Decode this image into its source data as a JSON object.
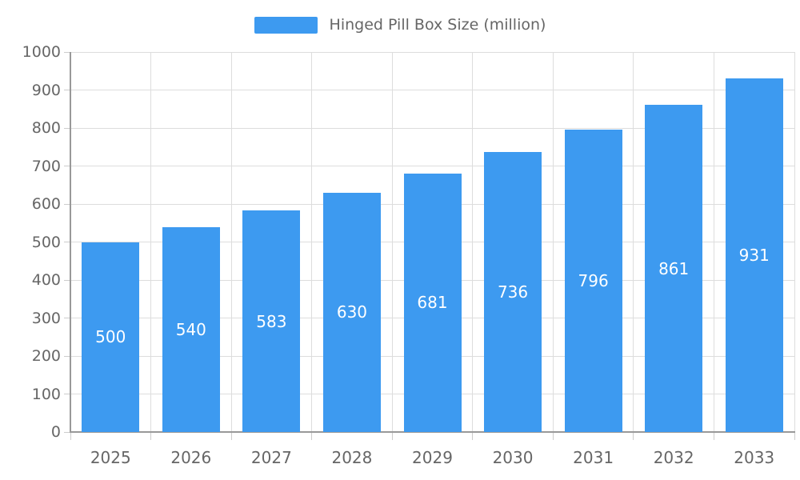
{
  "legend": {
    "label": "Hinged Pill Box Size (million)"
  },
  "chart_data": {
    "type": "bar",
    "title": "",
    "categories": [
      "2025",
      "2026",
      "2027",
      "2028",
      "2029",
      "2030",
      "2031",
      "2032",
      "2033"
    ],
    "series": [
      {
        "name": "Hinged Pill Box Size (million)",
        "values": [
          500,
          540,
          583,
          630,
          681,
          736,
          796,
          861,
          931
        ]
      }
    ],
    "bar_value_labels": [
      "500",
      "540",
      "583",
      "630",
      "681",
      "736",
      "796",
      "861",
      "931"
    ],
    "ylim": [
      0,
      1000
    ],
    "yticks": [
      0,
      100,
      200,
      300,
      400,
      500,
      600,
      700,
      800,
      900,
      1000
    ],
    "grid": true,
    "legend_position": "top",
    "colors": {
      "bar": "#3d9af0",
      "bar_value_text": "#ffffff",
      "axis_line": "#999999",
      "grid_line": "#dddddd",
      "tick_mark": "#cccccc",
      "label_text": "#666666"
    }
  }
}
